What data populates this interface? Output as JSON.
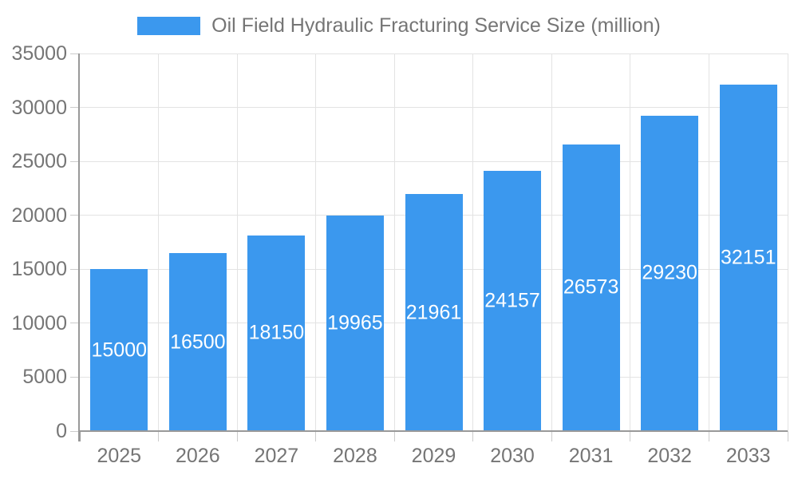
{
  "chart_data": {
    "type": "bar",
    "title": "Oil Field Hydraulic Fracturing Service Size (million)",
    "legend": {
      "label": "Oil Field Hydraulic Fracturing Service Size (million)",
      "position": "top"
    },
    "categories": [
      "2025",
      "2026",
      "2027",
      "2028",
      "2029",
      "2030",
      "2031",
      "2032",
      "2033"
    ],
    "values": [
      15000,
      16500,
      18150,
      19965,
      21961,
      24157,
      26573,
      29230,
      32151
    ],
    "value_labels": [
      "15000",
      "16500",
      "18150",
      "19965",
      "21961",
      "24157",
      "26573",
      "29230",
      "32151"
    ],
    "xlabel": "",
    "ylabel": "",
    "ylim": [
      0,
      35000
    ],
    "ytick_step": 5000,
    "ytick_labels": [
      "0",
      "5000",
      "10000",
      "15000",
      "20000",
      "25000",
      "30000",
      "35000"
    ],
    "grid": true,
    "colors": {
      "bar": "#3b98ee",
      "value_label": "#ffffff",
      "axis_line": "#999999",
      "gridline": "#e3e3e3",
      "tick": "#cccccc",
      "axis_text": "#757575",
      "background": "#ffffff"
    }
  }
}
